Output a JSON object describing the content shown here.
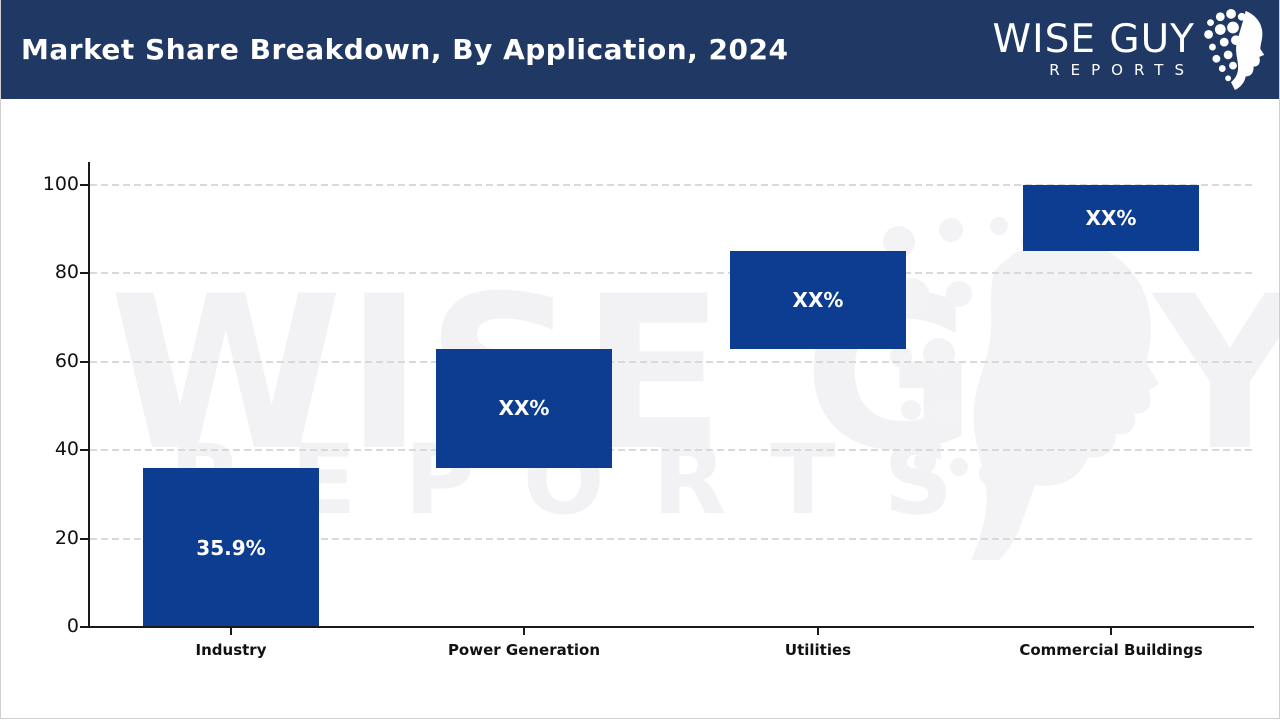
{
  "header": {
    "title": "Market Share Breakdown, By Application, 2024",
    "brand": {
      "line1": "WISE GUY",
      "line2": "REPORTS"
    }
  },
  "watermark": {
    "line1": "WISE GUY",
    "line2": "REPORTS"
  },
  "chart_data": {
    "type": "bar",
    "subtype": "floating-waterfall-columns",
    "title": "Market Share Breakdown, By Application, 2024",
    "categories": [
      "Industry",
      "Power Generation",
      "Utilities",
      "Commercial Buildings"
    ],
    "segments": [
      {
        "category": "Industry",
        "from": 0,
        "to": 35.9,
        "label": "35.9%"
      },
      {
        "category": "Power Generation",
        "from": 35.9,
        "to": 63.0,
        "label": "XX%"
      },
      {
        "category": "Utilities",
        "from": 63.0,
        "to": 85.1,
        "label": "XX%"
      },
      {
        "category": "Commercial Buildings",
        "from": 85.1,
        "to": 100.0,
        "label": "XX%"
      }
    ],
    "xlabel": "",
    "ylabel": "",
    "ylim": [
      0,
      100
    ],
    "yticks": [
      0,
      20,
      40,
      60,
      80,
      100
    ],
    "grid": "horizontal-dashed",
    "legend": "none",
    "colors": {
      "bar": "#0d3d91",
      "bar_label": "#ffffff",
      "axis": "#1a1a1a",
      "gridline": "#d9d9d9",
      "header_bg": "#203864",
      "header_text": "#ffffff",
      "watermark": "#f2f2f4"
    }
  }
}
